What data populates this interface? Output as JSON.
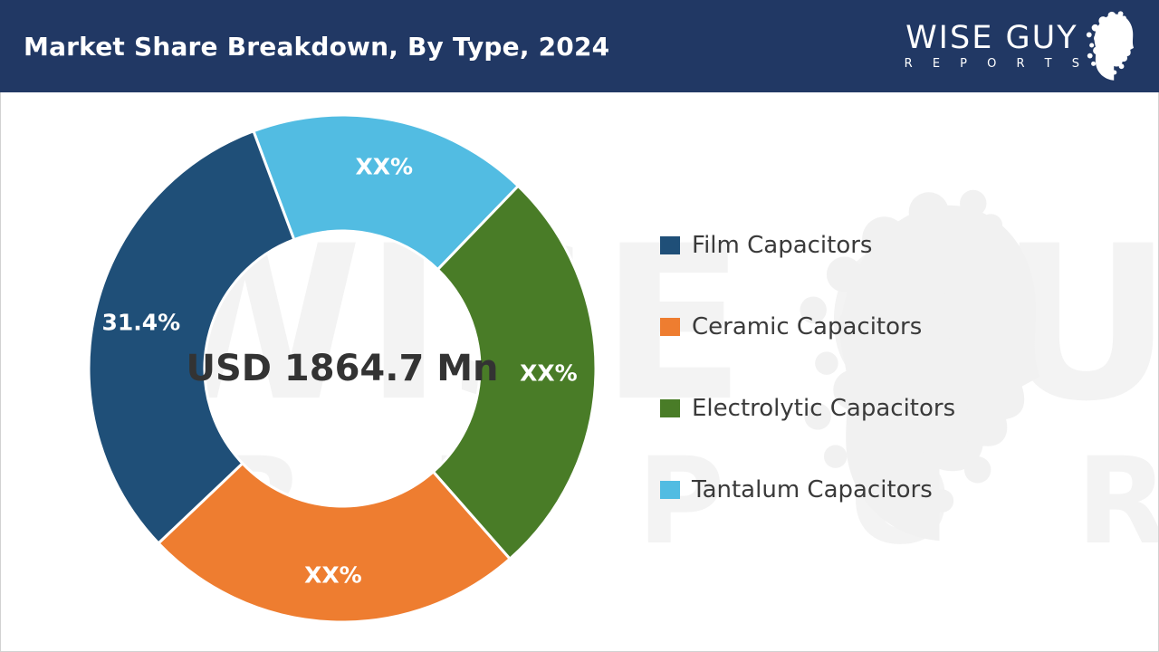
{
  "header": {
    "title": "Market Share Breakdown, By Type, 2024",
    "background_color": "#213864",
    "logo": {
      "line1": "WISE GUY",
      "line2": "R E P O R T S",
      "icon": "dotted-face-profile"
    }
  },
  "watermark": {
    "line1": "WISE GUY",
    "line2": "R E P O R T S",
    "icon": "dotted-face-profile"
  },
  "chart_data": {
    "type": "donut",
    "title": "Market Share Breakdown, By Type, 2024",
    "center_label": "USD 1864.7 Mn",
    "center_label_color": "#333333",
    "segment_label_color": "#ffffff",
    "start_angle_deg": 339.5,
    "legend_position": "right",
    "segments": [
      {
        "name": "Tantalum Capacitors",
        "value_pct": 17.9,
        "label": "XX%",
        "color": "#52bce2"
      },
      {
        "name": "Electrolytic Capacitors",
        "value_pct": 26.3,
        "label": "XX%",
        "color": "#497c27"
      },
      {
        "name": "Ceramic Capacitors",
        "value_pct": 24.4,
        "label": "XX%",
        "color": "#ee7d30"
      },
      {
        "name": "Film Capacitors",
        "value_pct": 31.4,
        "label": "31.4%",
        "color": "#1f4f78"
      }
    ]
  },
  "legend": {
    "items": [
      {
        "label": "Film Capacitors",
        "color": "#1f4f78"
      },
      {
        "label": "Ceramic Capacitors",
        "color": "#ee7d30"
      },
      {
        "label": "Electrolytic Capacitors",
        "color": "#497c27"
      },
      {
        "label": "Tantalum Capacitors",
        "color": "#52bce2"
      }
    ]
  }
}
